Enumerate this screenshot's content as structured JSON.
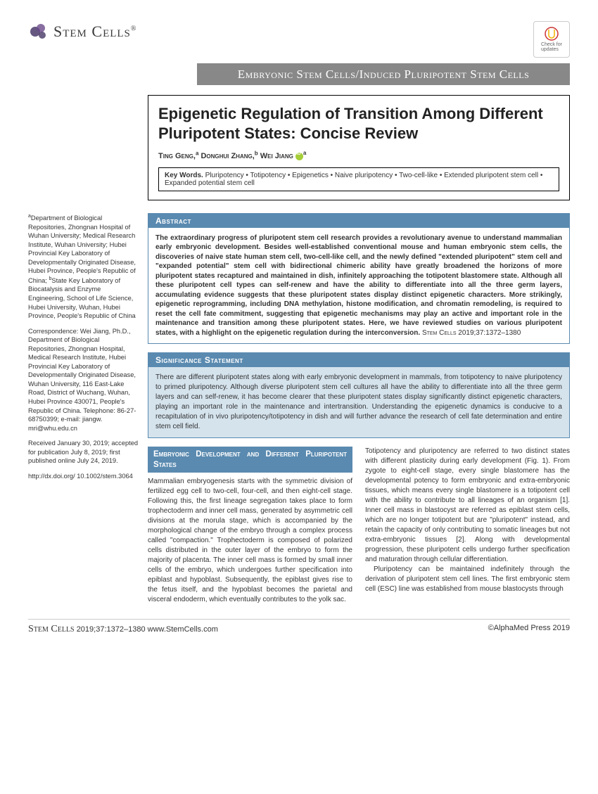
{
  "journal": {
    "name": "Stem Cells",
    "registered": "®"
  },
  "check_updates": {
    "line1": "Check for",
    "line2": "updates"
  },
  "category": "Embryonic Stem Cells/Induced Pluripotent Stem Cells",
  "title": "Epigenetic Regulation of Transition Among Different Pluripotent States: Concise Review",
  "authors_html": "Ting Geng,<sup>a</sup> Donghui Zhang,<sup>b</sup> Wei Jiang",
  "author_sup_last": "a",
  "keywords": {
    "label": "Key Words.",
    "text": "Pluripotency • Totipotency • Epigenetics • Naive pluripotency • Two-cell-like • Extended pluripotent stem cell • Expanded potential stem cell"
  },
  "sidebar": {
    "affiliations": "<sup>a</sup>Department of Biological Repositories, Zhongnan Hospital of Wuhan University; Medical Research Institute, Wuhan University; Hubei Provincial Key Laboratory of Developmentally Originated Disease, Hubei Province, People's Republic of China; <sup>b</sup>State Key Laboratory of Biocatalysis and Enzyme Engineering, School of Life Science, Hubei University, Wuhan, Hubei Province, People's Republic of China",
    "correspondence": "Correspondence: Wei Jiang, Ph.D., Department of Biological Repositories, Zhongnan Hospital, Medical Research Institute, Hubei Provincial Key Laboratory of Developmentally Originated Disease, Wuhan University, 116 East-Lake Road, District of Wuchang, Wuhan, Hubei Province 430071, People's Republic of China. Telephone: 86-27-68750399; e-mail: jiangw. mri@whu.edu.cn",
    "dates": "Received January 30, 2019; accepted for publication July 8, 2019; first published online July 24, 2019.",
    "doi": "http://dx.doi.org/ 10.1002/stem.3064"
  },
  "abstract": {
    "label": "Abstract",
    "text": "The extraordinary progress of pluripotent stem cell research provides a revolutionary avenue to understand mammalian early embryonic development. Besides well-established conventional mouse and human embryonic stem cells, the discoveries of naive state human stem cell, two-cell-like cell, and the newly defined \"extended pluripotent\" stem cell and \"expanded potential\" stem cell with bidirectional chimeric ability have greatly broadened the horizons of more pluripotent states recaptured and maintained in dish, infinitely approaching the totipotent blastomere state. Although all these pluripotent cell types can self-renew and have the ability to differentiate into all the three germ layers, accumulating evidence suggests that these pluripotent states display distinct epigenetic characters. More strikingly, epigenetic reprogramming, including DNA methylation, histone modification, and chromatin remodeling, is required to reset the cell fate commitment, suggesting that epigenetic mechanisms may play an active and important role in the maintenance and transition among these pluripotent states. Here, we have reviewed studies on various pluripotent states, with a highlight on the epigenetic regulation during the interconversion.",
    "citation": "Stem Cells 2019;37:1372–1380"
  },
  "significance": {
    "label": "Significance Statement",
    "text": "There are different pluripotent states along with early embryonic development in mammals, from totipotency to naive pluripotency to primed pluripotency. Although diverse pluripotent stem cell cultures all have the ability to differentiate into all the three germ layers and can self-renew, it has become clearer that these pluripotent states display significantly distinct epigenetic characters, playing an important role in the maintenance and intertransition. Understanding the epigenetic dynamics is conducive to a recapitulation of in vivo pluripotency/totipotency in dish and will further advance the research of cell fate determination and entire stem cell field."
  },
  "section1": {
    "heading": "Embryonic Development and Different Pluripotent States",
    "p1": "Mammalian embryogenesis starts with the symmetric division of fertilized egg cell to two-cell, four-cell, and then eight-cell stage. Following this, the first lineage segregation takes place to form trophectoderm and inner cell mass, generated by asymmetric cell divisions at the morula stage, which is accompanied by the morphological change of the embryo through a complex process called \"compaction.\" Trophectoderm is composed of polarized cells distributed in the outer layer of the embryo to form the majority of placenta. The inner cell mass is formed by small inner cells of the embryo, which undergoes further specification into epiblast and hypoblast. Subsequently, the epiblast gives rise to the fetus itself, and the hypoblast becomes the parietal and visceral endoderm, which eventually contributes to the yolk sac.",
    "p2": "Totipotency and pluripotency are referred to two distinct states with different plasticity during early development (Fig. 1). From zygote to eight-cell stage, every single blastomere has the developmental potency to form embryonic and extra-embryonic tissues, which means every single blastomere is a totipotent cell with the ability to contribute to all lineages of an organism [1]. Inner cell mass in blastocyst are referred as epiblast stem cells, which are no longer totipotent but are \"pluripotent\" instead, and retain the capacity of only contributing to somatic lineages but not extra-embryonic tissues [2]. Along with developmental progression, these pluripotent cells undergo further specification and maturation through cellular differentiation.",
    "p3": "Pluripotency can be maintained indefinitely through the derivation of pluripotent stem cell lines. The first embryonic stem cell (ESC) line was established from mouse blastocysts through"
  },
  "footer": {
    "citation": "2019;37:1372–1380 www.StemCells.com",
    "copyright": "©AlphaMed Press 2019"
  },
  "colors": {
    "banner_gray": "#888888",
    "accent_blue": "#5a8ab0",
    "sig_bg": "#d5e3ed",
    "orcid_green": "#a6ce39"
  }
}
